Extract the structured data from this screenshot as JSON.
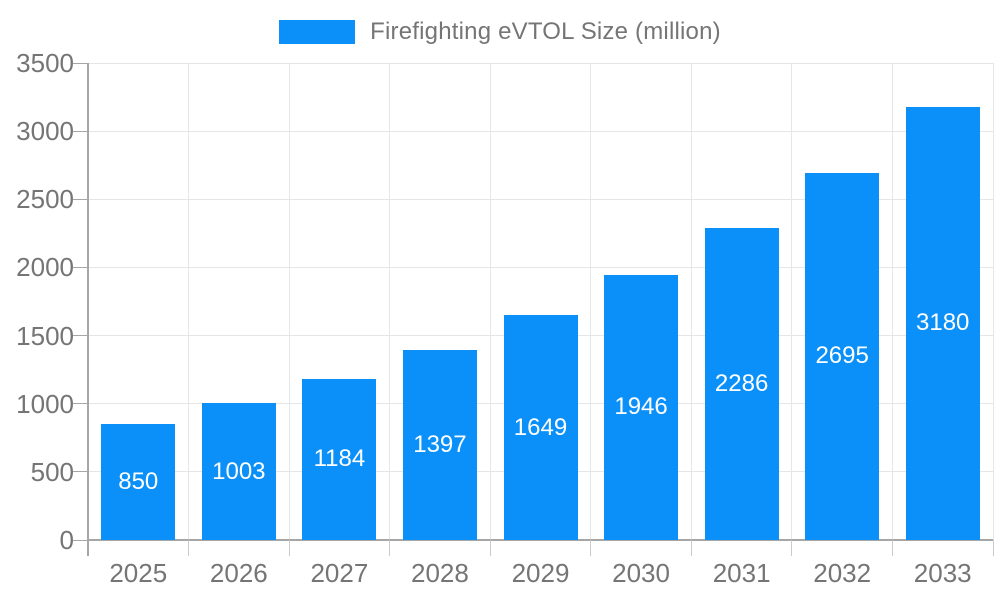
{
  "chart_data": {
    "type": "bar",
    "title": "",
    "legend": {
      "label": "Firefighting eVTOL Size (million)",
      "position": "top"
    },
    "categories": [
      "2025",
      "2026",
      "2027",
      "2028",
      "2029",
      "2030",
      "2031",
      "2032",
      "2033"
    ],
    "series": [
      {
        "name": "Firefighting eVTOL Size (million)",
        "values": [
          850,
          1003,
          1184,
          1397,
          1649,
          1946,
          2286,
          2695,
          3180
        ]
      }
    ],
    "xlabel": "",
    "ylabel": "",
    "ylim": [
      0,
      3500
    ],
    "yticks": [
      0,
      500,
      1000,
      1500,
      2000,
      2500,
      3000,
      3500
    ],
    "grid": true,
    "bar_labels_visible": true,
    "colors": {
      "bar": "#0b90f9",
      "bar_label": "#ffffff",
      "axis_text": "#757575",
      "grid_line": "#e6e6e6",
      "axis_line": "#a6a6a6",
      "tick_line": "#cccccc",
      "background": "#ffffff"
    }
  }
}
